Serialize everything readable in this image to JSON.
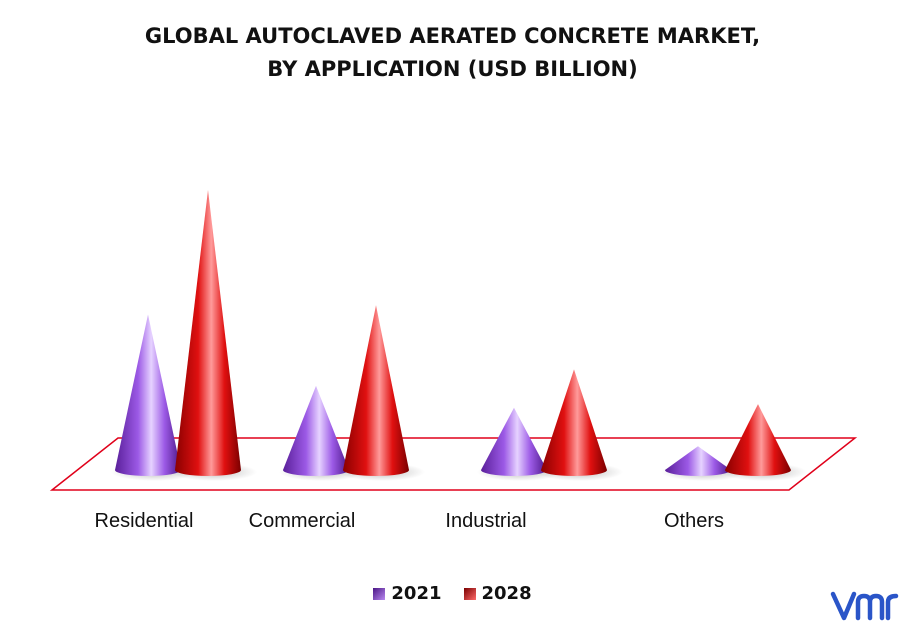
{
  "chart_data": {
    "type": "bar",
    "title": [
      "GLOBAL AUTOCLAVED AERATED CONCRETE MARKET,",
      "BY APPLICATION (USD BILLION)"
    ],
    "categories": [
      "Residential",
      "Commercial",
      "Industrial",
      "Others"
    ],
    "series": [
      {
        "name": "2021",
        "values": [
          8.5,
          4.6,
          3.4,
          1.3
        ]
      },
      {
        "name": "2028",
        "values": [
          15.3,
          9.0,
          5.5,
          3.6
        ]
      }
    ],
    "xlabel": "",
    "ylabel": "",
    "grid": false,
    "legend_position": "bottom",
    "colors": {
      "2021": "#8a44d8",
      "2028": "#dd1111",
      "floor": "#e0001a"
    }
  },
  "logo": {
    "name": "vmr-logo",
    "color": "#2a55c8"
  }
}
